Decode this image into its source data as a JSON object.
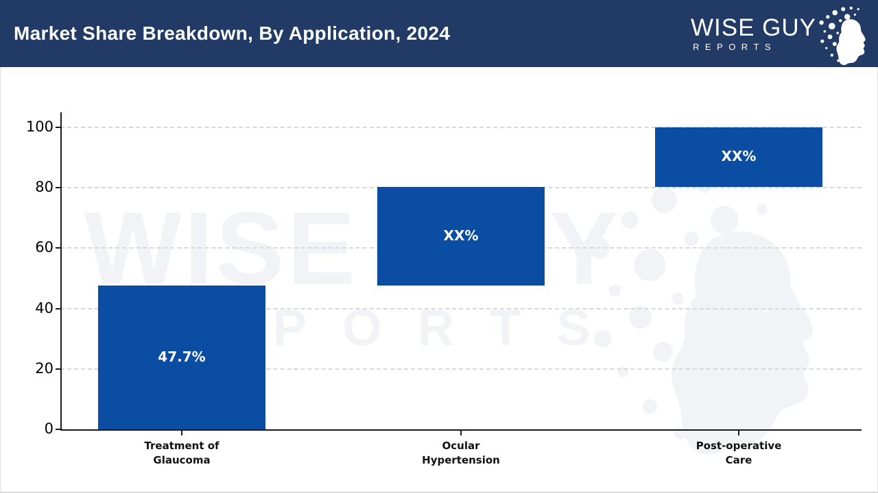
{
  "header": {
    "title": "Market Share Breakdown, By Application, 2024",
    "logo": {
      "line1": "WISE GUY",
      "line2": "REPORTS"
    }
  },
  "watermark": {
    "line1": "WISE GUY",
    "line2": "REPORTS"
  },
  "colors": {
    "header_bg": "#213A66",
    "bar": "#0B4DA2",
    "grid": "#D8D8D8",
    "axis": "#1A1A1A",
    "bar_label": "#FFFFFF",
    "watermark": "#F1F3F6"
  },
  "chart_data": {
    "type": "bar",
    "subtype": "waterfall",
    "title": "Market Share Breakdown, By Application, 2024",
    "categories": [
      "Treatment of\nGlaucoma",
      "Ocular\nHypertension",
      "Post-operative\nCare"
    ],
    "segments": [
      {
        "category": "Treatment of Glaucoma",
        "start": 0,
        "end": 47.7,
        "label": "47.7%"
      },
      {
        "category": "Ocular Hypertension",
        "start": 47.7,
        "end": 80.3,
        "label": "XX%"
      },
      {
        "category": "Post-operative Care",
        "start": 80.3,
        "end": 100,
        "label": "XX%"
      }
    ],
    "xlabel": "",
    "ylabel": "",
    "ylim": [
      0,
      100
    ],
    "yticks": [
      0,
      20,
      40,
      60,
      80,
      100
    ],
    "grid": "horizontal-dashed",
    "legend": "none"
  }
}
